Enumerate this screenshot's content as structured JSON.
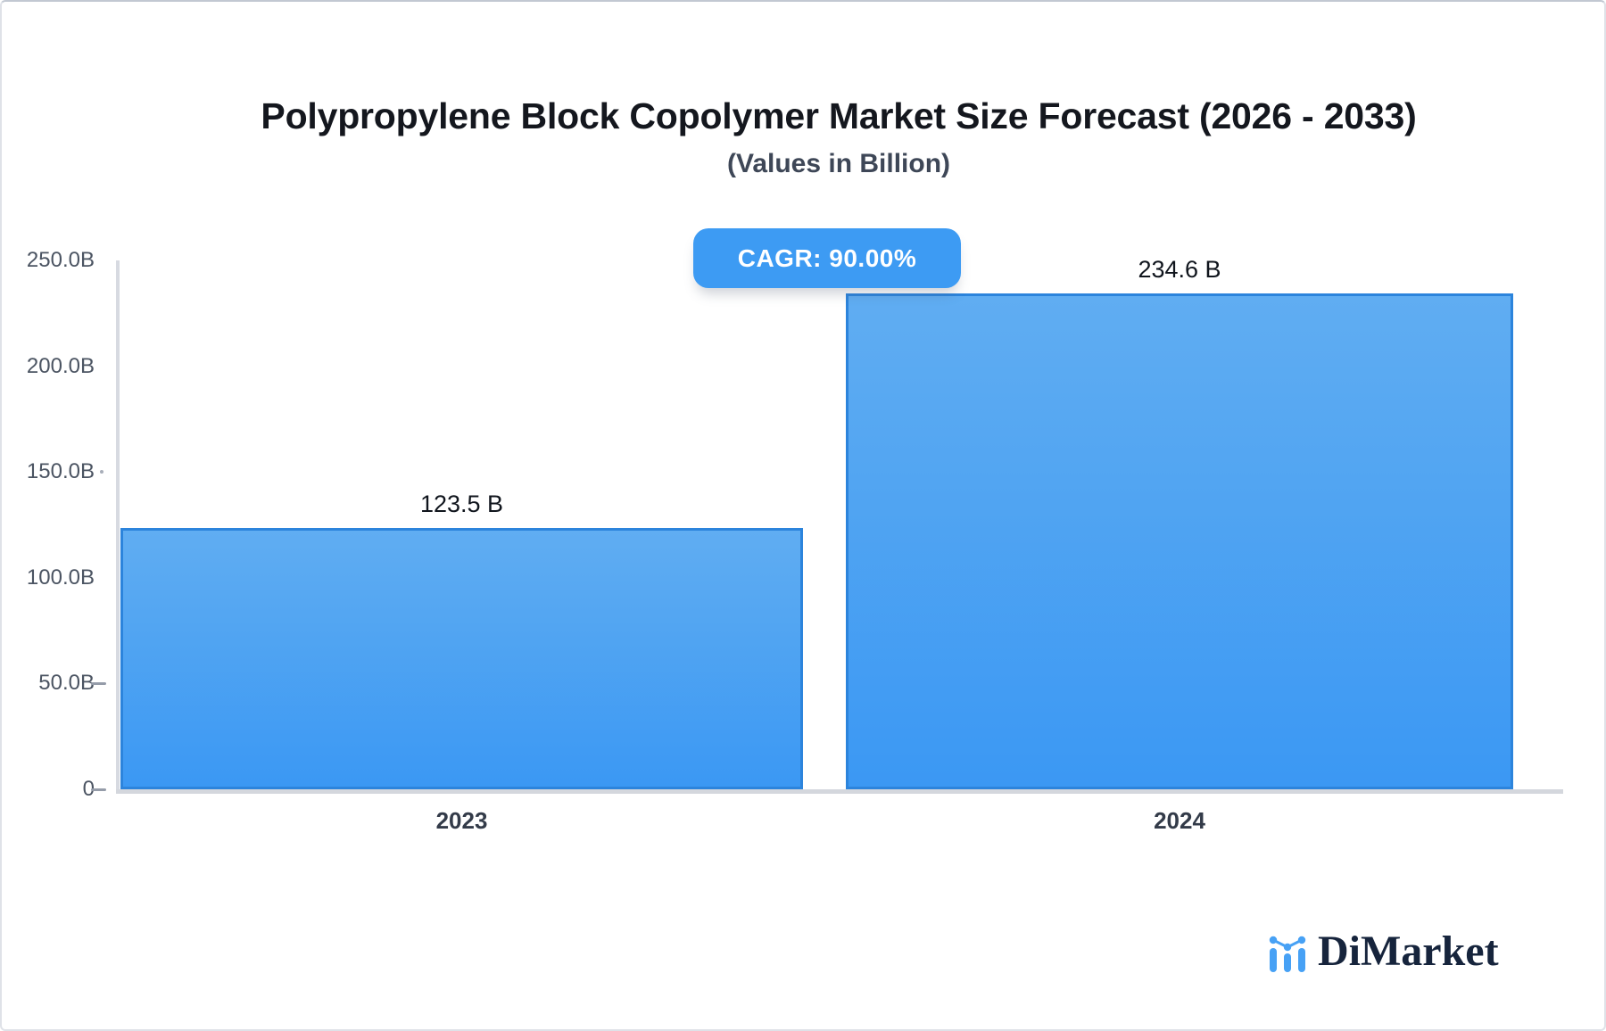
{
  "badge": {
    "label": "CAGR: 90.00%",
    "bg_color": "#3d9bf3",
    "text_color": "#ffffff"
  },
  "chart_data": {
    "type": "bar",
    "title": "Polypropylene Block Copolymer Market Size Forecast (2026 - 2033)",
    "subtitle": "(Values in Billion)",
    "categories": [
      "2023",
      "2024"
    ],
    "values": [
      123.5,
      234.6
    ],
    "value_labels": [
      "123.5 B",
      "234.6 B"
    ],
    "cagr_percent": 90.0,
    "ylim": [
      0,
      250
    ],
    "y_axis_ticks": [
      {
        "label": "250.0B",
        "value": 250,
        "marker": "none"
      },
      {
        "label": "200.0B",
        "value": 200,
        "marker": "none"
      },
      {
        "label": "150.0B",
        "value": 150,
        "marker": "dot"
      },
      {
        "label": "100.0B",
        "value": 100,
        "marker": "none"
      },
      {
        "label": "50.0B",
        "value": 50,
        "marker": "dash"
      },
      {
        "label": "0",
        "value": 0,
        "marker": "dash"
      }
    ],
    "grid": false,
    "legend": false,
    "bar_colors": {
      "top": "#60adf2",
      "bottom": "#3b98f3",
      "border": "#2c84dc"
    }
  },
  "brand": {
    "name": "DiMarket",
    "icon": "mini-bar-line-chart-icon",
    "icon_color": "#47a1f5",
    "text_color": "#16243c"
  },
  "colors": {
    "accent_blue": "#3d9bf3",
    "axis_line": "#d6d9e0",
    "title_text": "#14171e",
    "subtitle_text": "#3e4757",
    "axis_label_text": "#4b5462",
    "category_label_text": "#333b49"
  }
}
